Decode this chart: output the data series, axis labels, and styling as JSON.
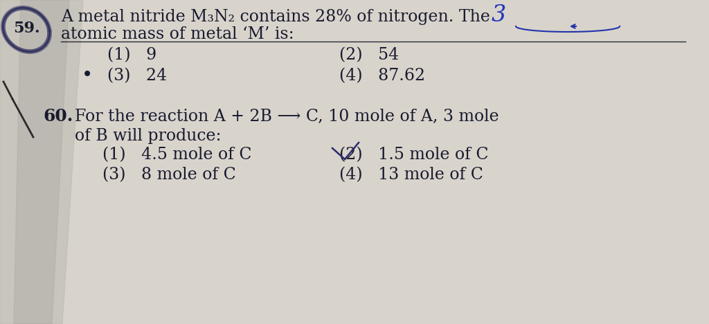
{
  "bg_color": "#d8d4cc",
  "paper_color": "#e8e6e0",
  "q59_number": "59.",
  "q59_text_line1": "A metal nitride M₃N₂ contains 28% of nitrogen. The",
  "q59_text_line2": "atomic mass of metal ‘M’ is:",
  "q59_opt1": "(1)   9",
  "q59_opt2": "(2)   54",
  "q59_opt3_bullet": "•",
  "q59_opt3": "(3)   24",
  "q59_opt4": "(4)   87.62",
  "q59_corner_number": "3",
  "q60_number": "60.",
  "q60_text_line1": "For the reaction A + 2B ⟶ C, 10 mole of A, 3 mole",
  "q60_text_line2": "of B will produce:",
  "q60_opt1": "(1)   4.5 mole of C",
  "q60_opt2": "(2)   1.5 mole of C",
  "q60_opt3": "(3)   8 mole of C",
  "q60_opt4": "(4)   13 mole of C",
  "text_color": "#1a1a2e",
  "font_size_main": 17,
  "font_size_number": 18,
  "font_size_corner": 24,
  "line_color": "#2a2a3a"
}
